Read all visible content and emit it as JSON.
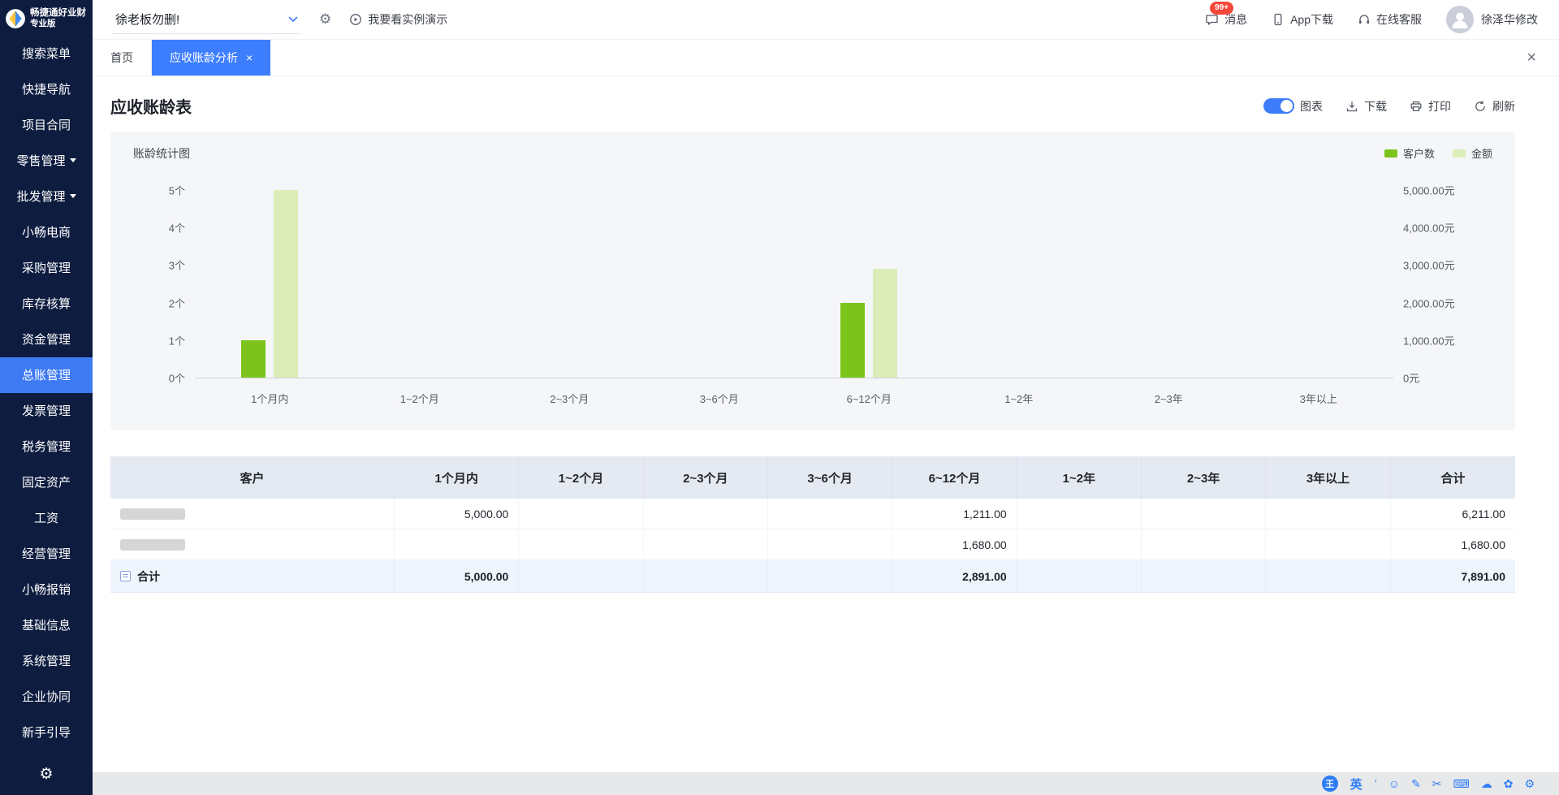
{
  "app": {
    "brand_line1": "畅捷通好业财",
    "brand_line2": "专业版"
  },
  "sidebar": {
    "items": [
      {
        "name": "search-menu",
        "label": "搜索菜单"
      },
      {
        "name": "quick-nav",
        "label": "快捷导航"
      },
      {
        "name": "project-contract",
        "label": "项目合同"
      },
      {
        "name": "retail-mgmt",
        "label": "零售管理",
        "has_dropdown": true
      },
      {
        "name": "wholesale-mgmt",
        "label": "批发管理",
        "has_dropdown": true
      },
      {
        "name": "xiaochang-ecommerce",
        "label": "小畅电商"
      },
      {
        "name": "purchase-mgmt",
        "label": "采购管理"
      },
      {
        "name": "inventory-accounting",
        "label": "库存核算"
      },
      {
        "name": "funds-mgmt",
        "label": "资金管理"
      },
      {
        "name": "general-ledger",
        "label": "总账管理",
        "active": true
      },
      {
        "name": "invoice-mgmt",
        "label": "发票管理"
      },
      {
        "name": "tax-mgmt",
        "label": "税务管理"
      },
      {
        "name": "fixed-assets",
        "label": "固定资产"
      },
      {
        "name": "payroll",
        "label": "工资"
      },
      {
        "name": "business-mgmt",
        "label": "经营管理"
      },
      {
        "name": "xiaochang-expense",
        "label": "小畅报销"
      },
      {
        "name": "basic-info",
        "label": "基础信息"
      },
      {
        "name": "system-mgmt",
        "label": "系统管理"
      },
      {
        "name": "enterprise-collab",
        "label": "企业协同"
      },
      {
        "name": "beginner-guide",
        "label": "新手引导"
      }
    ]
  },
  "topbar": {
    "company_selector": "徐老板勿删!",
    "demo_link": "我要看实例演示",
    "messages_label": "消息",
    "messages_badge": "99+",
    "app_download_label": "App下载",
    "support_label": "在线客服",
    "username": "徐泽华修改"
  },
  "tabs": [
    {
      "name": "home",
      "label": "首页"
    },
    {
      "name": "receivable-aging-analysis",
      "label": "应收账龄分析",
      "active": true,
      "closable": true
    }
  ],
  "page": {
    "title": "应收账龄表",
    "toggle_label": "图表",
    "toggle_on": true,
    "download_label": "下载",
    "print_label": "打印",
    "refresh_label": "刷新"
  },
  "chart_data": {
    "type": "bar",
    "title": "账龄统计图",
    "categories": [
      "1个月内",
      "1~2个月",
      "2~3个月",
      "3~6个月",
      "6~12个月",
      "1~2年",
      "2~3年",
      "3年以上"
    ],
    "series": [
      {
        "name": "客户数",
        "axis": "left",
        "color": "#7cc41c",
        "values": [
          1,
          0,
          0,
          0,
          2,
          0,
          0,
          0
        ]
      },
      {
        "name": "金额",
        "axis": "right",
        "color": "#dcedba",
        "values": [
          5000,
          0,
          0,
          0,
          2891,
          0,
          0,
          0
        ]
      }
    ],
    "left_axis": {
      "label_unit": "个",
      "max": 5,
      "ticks": [
        "0个",
        "1个",
        "2个",
        "3个",
        "4个",
        "5个"
      ]
    },
    "right_axis": {
      "label_unit": "元",
      "max": 5000,
      "ticks": [
        "0元",
        "1,000.00元",
        "2,000.00元",
        "3,000.00元",
        "4,000.00元",
        "5,000.00元"
      ]
    },
    "legend_position": "top-right",
    "grid": false
  },
  "table": {
    "headers": [
      "客户",
      "1个月内",
      "1~2个月",
      "2~3个月",
      "3~6个月",
      "6~12个月",
      "1~2年",
      "2~3年",
      "3年以上",
      "合计"
    ],
    "rows": [
      {
        "customer_redacted": true,
        "cells": [
          "5,000.00",
          "",
          "",
          "",
          "1,211.00",
          "",
          "",
          "",
          "6,211.00"
        ]
      },
      {
        "customer_redacted": true,
        "cells": [
          "",
          "",
          "",
          "",
          "1,680.00",
          "",
          "",
          "",
          "1,680.00"
        ]
      }
    ],
    "total_row": {
      "label": "合计",
      "cells": [
        "5,000.00",
        "",
        "",
        "",
        "2,891.00",
        "",
        "",
        "",
        "7,891.00"
      ]
    }
  },
  "ime": {
    "logo_char": "王",
    "lang_char": "英",
    "icons": [
      {
        "name": "punctuation-icon",
        "glyph": "’"
      },
      {
        "name": "emoji-icon",
        "glyph": "☺"
      },
      {
        "name": "pen-icon",
        "glyph": "✎"
      },
      {
        "name": "scissors-icon",
        "glyph": "✂"
      },
      {
        "name": "keyboard-icon",
        "glyph": "⌨"
      },
      {
        "name": "cloud-icon",
        "glyph": "☁"
      },
      {
        "name": "skin-icon",
        "glyph": "✿"
      },
      {
        "name": "settings-icon",
        "glyph": "⚙"
      }
    ]
  }
}
